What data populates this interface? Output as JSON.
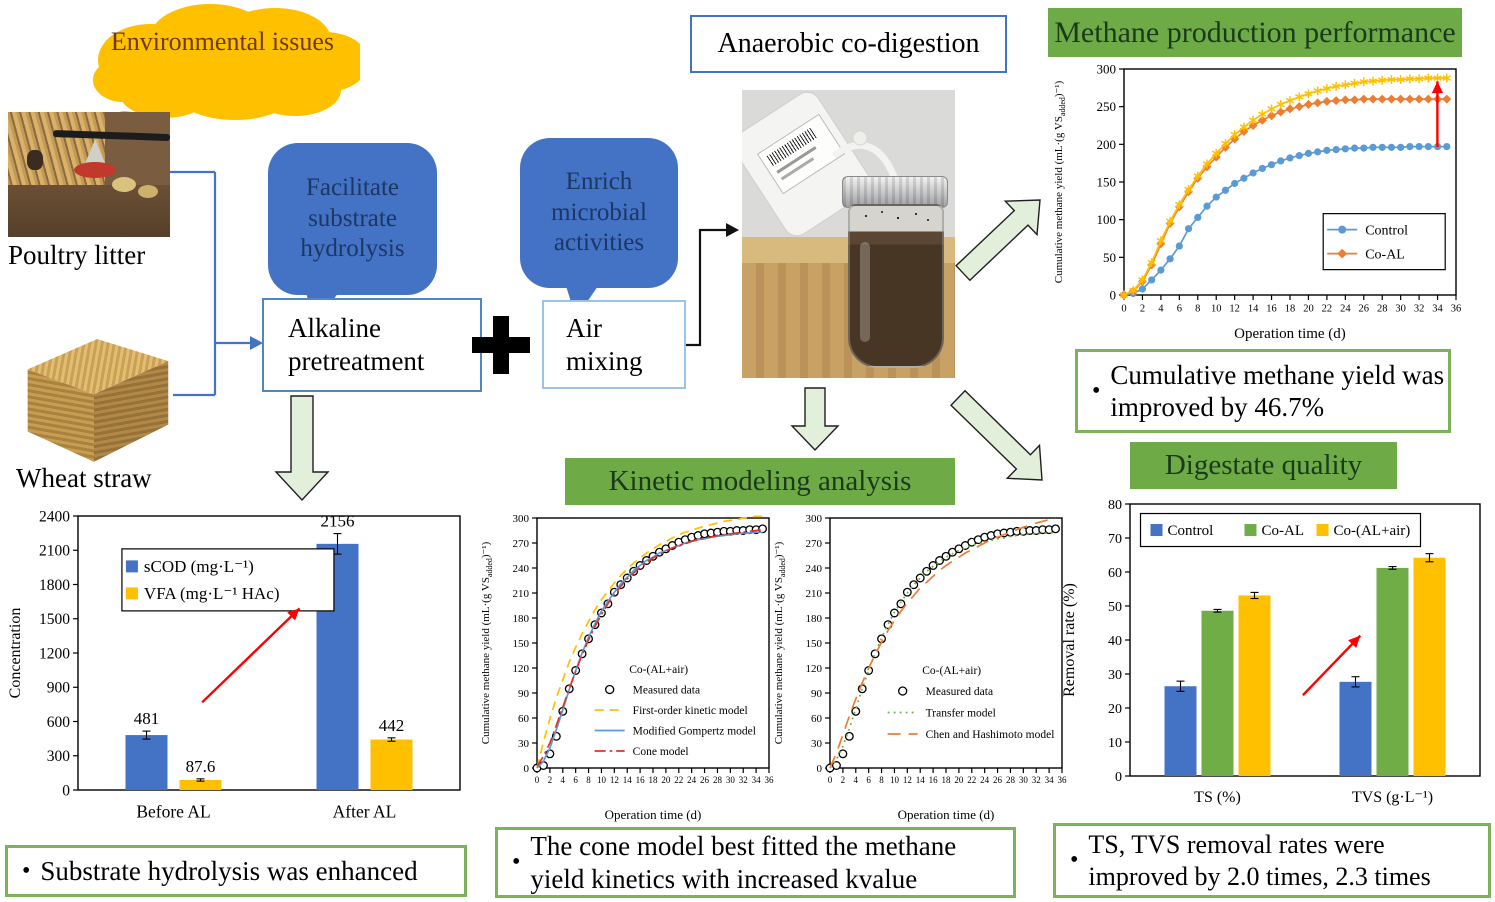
{
  "flow": {
    "cloud_label": "Environmental issues",
    "poultry_label": "Poultry litter",
    "wheat_label": "Wheat straw",
    "facilitate_bubble": "Facilitate substrate hydrolysis",
    "enrich_bubble": "Enrich microbial activities",
    "alkaline_box": "Alkaline pretreatment",
    "air_box": "Air mixing",
    "plus_sign": "+",
    "anaerobic_box": "Anaerobic co-digestion"
  },
  "headers": {
    "methane": "Methane production performance",
    "kinetic": "Kinetic modeling analysis",
    "digestate": "Digestate quality"
  },
  "bullet_char": "•",
  "bullets": {
    "methane": "Cumulative methane yield was improved by 46.7%",
    "hydrolysis": "Substrate hydrolysis was enhanced",
    "cone": "The cone model best fitted the methane yield kinetics with increased kvalue",
    "removal": "TS, TVS removal rates were improved by 2.0 times, 2.3 times"
  },
  "colors": {
    "blue": "#4472C4",
    "light_blue": "#5B9BD5",
    "orange": "#ED7D31",
    "yellow": "#FFC000",
    "green": "#70AD47",
    "header_green": "#6EAB47",
    "bullet_border": "#7DB15C",
    "cloud_yellow": "#FFC000",
    "red": "#FF0000",
    "block_arrow_fill": "#E2EFDA"
  },
  "chart_data": [
    {
      "id": "methane_performance",
      "type": "line",
      "xlabel": "Operation time (d)",
      "ylabel": "Cumulative methane yield (mL·(g VSadded)⁻¹)",
      "xlim": [
        0,
        36
      ],
      "xtick_step": 2,
      "ylim": [
        0,
        300
      ],
      "ytick_step": 50,
      "x": [
        0,
        1,
        2,
        3,
        4,
        5,
        6,
        7,
        8,
        9,
        10,
        11,
        12,
        13,
        14,
        15,
        16,
        17,
        18,
        19,
        20,
        21,
        22,
        23,
        24,
        25,
        26,
        27,
        28,
        29,
        30,
        31,
        32,
        33,
        34,
        35
      ],
      "series": [
        {
          "name": "Control",
          "color": "#5B9BD5",
          "marker": "circle",
          "line": "solid",
          "values": [
            0,
            2,
            8,
            20,
            33,
            48,
            65,
            88,
            103,
            118,
            130,
            139,
            148,
            155,
            162,
            168,
            173,
            178,
            182,
            185,
            188,
            190,
            192,
            193,
            194,
            195,
            195,
            196,
            196,
            196,
            196,
            197,
            197,
            197,
            197,
            197
          ]
        },
        {
          "name": "Co-AL",
          "color": "#ED7D31",
          "marker": "diamond",
          "line": "solid",
          "values": [
            0,
            5,
            18,
            40,
            68,
            95,
            117,
            137,
            155,
            170,
            183,
            196,
            207,
            217,
            225,
            232,
            238,
            243,
            247,
            250,
            253,
            255,
            257,
            258,
            259,
            259,
            260,
            260,
            260,
            260,
            260,
            260,
            260,
            260,
            260,
            260
          ]
        },
        {
          "name": "Co-(AL+air)",
          "color": "#FFC000",
          "marker": "star",
          "line": "solid",
          "values": [
            0,
            6,
            20,
            43,
            72,
            98,
            120,
            140,
            158,
            174,
            188,
            201,
            213,
            223,
            232,
            240,
            247,
            253,
            258,
            263,
            267,
            271,
            274,
            277,
            279,
            281,
            283,
            284,
            285,
            286,
            286,
            287,
            287,
            288,
            288,
            288
          ]
        }
      ],
      "legend": {
        "entries": [
          {
            "label": "Control",
            "series": "Control"
          },
          {
            "label": "Co-AL",
            "series": "Co-AL"
          }
        ]
      }
    },
    {
      "id": "hydrolysis_concentration",
      "type": "bar",
      "ylabel": "Concentration",
      "ylim": [
        0,
        2400
      ],
      "ytick_step": 300,
      "categories": [
        "Before AL",
        "After AL"
      ],
      "series": [
        {
          "name": "sCOD (mg·L⁻¹)",
          "color": "#4472C4",
          "values": [
            481,
            2156
          ],
          "errors": [
            35,
            90
          ],
          "labels": [
            "481",
            "2156"
          ]
        },
        {
          "name": "VFA (mg·L⁻¹ HAc)",
          "color": "#FFC000",
          "values": [
            87.6,
            442
          ],
          "errors": [
            10,
            15
          ],
          "labels": [
            "87.6",
            "442"
          ]
        }
      ],
      "legend": {
        "entries": [
          {
            "label": "sCOD (mg·L⁻¹)",
            "series": "sCOD (mg·L⁻¹)"
          },
          {
            "label": "VFA (mg·L⁻¹ HAc)",
            "series": "VFA (mg·L⁻¹ HAc)"
          }
        ]
      },
      "show_values": true
    },
    {
      "id": "kinetic_first_order",
      "type": "line",
      "xlabel": "Operation time (d)",
      "ylabel": "Cumulative methane yield (mL·(g VSadded)⁻¹)",
      "xlim": [
        0,
        36
      ],
      "xtick_step": 2,
      "ylim": [
        0,
        300
      ],
      "ytick_step": 30,
      "x": [
        0,
        1,
        2,
        3,
        4,
        5,
        6,
        7,
        8,
        9,
        10,
        11,
        12,
        13,
        14,
        15,
        16,
        17,
        18,
        19,
        20,
        21,
        22,
        23,
        24,
        25,
        26,
        27,
        28,
        29,
        30,
        31,
        32,
        33,
        34,
        35
      ],
      "series": [
        {
          "name": "Measured data",
          "color": "#000000",
          "marker": "circleopen",
          "line": "none",
          "values": [
            0,
            3,
            17,
            38,
            68,
            95,
            117,
            137,
            155,
            172,
            186,
            197,
            211,
            220,
            228,
            236,
            243,
            249,
            254,
            259,
            263,
            267,
            271,
            274,
            277,
            279,
            281,
            282,
            283,
            284,
            284,
            285,
            285,
            286,
            286,
            287
          ]
        },
        {
          "name": "First-order kinetic model",
          "color": "#FFC000",
          "marker": "none",
          "line": "dashed",
          "values": [
            0,
            31,
            59,
            84,
            106,
            127,
            145,
            161,
            176,
            190,
            202,
            212,
            222,
            231,
            239,
            246,
            252,
            258,
            263,
            268,
            272,
            276,
            280,
            283,
            285,
            288,
            290,
            292,
            294,
            296,
            297,
            298,
            300,
            301,
            302,
            302
          ]
        },
        {
          "name": "Modified Gompertz model",
          "color": "#5B9BD5",
          "marker": "none",
          "line": "solid",
          "values": [
            0,
            8,
            24,
            46,
            70,
            94,
            117,
            138,
            157,
            173,
            188,
            200,
            211,
            221,
            229,
            237,
            243,
            249,
            253,
            258,
            261,
            264,
            267,
            270,
            272,
            274,
            275,
            277,
            278,
            279,
            280,
            281,
            282,
            282,
            283,
            283
          ]
        },
        {
          "name": "Cone model",
          "color": "#E4312B",
          "marker": "none",
          "line": "dashdot",
          "values": [
            2,
            14,
            30,
            51,
            73,
            95,
            116,
            136,
            154,
            170,
            184,
            197,
            208,
            218,
            227,
            234,
            241,
            247,
            252,
            256,
            260,
            264,
            267,
            269,
            272,
            274,
            276,
            277,
            279,
            280,
            281,
            282,
            283,
            284,
            285,
            286
          ]
        }
      ],
      "legend": {
        "title": "Co-(AL+air)",
        "entries": [
          {
            "label": "Measured data",
            "series": "Measured data"
          },
          {
            "label": "First-order kinetic model",
            "series": "First-order kinetic model"
          },
          {
            "label": "Modified Gompertz model",
            "series": "Modified Gompertz model"
          },
          {
            "label": "Cone model",
            "series": "Cone model"
          }
        ]
      }
    },
    {
      "id": "kinetic_transfer",
      "type": "line",
      "xlabel": "Operation time (d)",
      "ylabel": "Cumulative methane yield (mL·(g VSadded)⁻¹)",
      "xlim": [
        0,
        36
      ],
      "xtick_step": 2,
      "ylim": [
        0,
        300
      ],
      "ytick_step": 30,
      "x": [
        0,
        1,
        2,
        3,
        4,
        5,
        6,
        7,
        8,
        9,
        10,
        11,
        12,
        13,
        14,
        15,
        16,
        17,
        18,
        19,
        20,
        21,
        22,
        23,
        24,
        25,
        26,
        27,
        28,
        29,
        30,
        31,
        32,
        33,
        34,
        35
      ],
      "series": [
        {
          "name": "Measured data",
          "color": "#000000",
          "marker": "circleopen",
          "line": "none",
          "values": [
            0,
            3,
            17,
            38,
            68,
            95,
            117,
            137,
            155,
            172,
            186,
            197,
            211,
            220,
            228,
            236,
            243,
            249,
            254,
            259,
            263,
            267,
            271,
            274,
            277,
            279,
            281,
            282,
            283,
            284,
            284,
            285,
            285,
            286,
            286,
            287
          ]
        },
        {
          "name": "Transfer model",
          "color": "#70AD47",
          "marker": "none",
          "line": "dotted",
          "values": [
            0,
            10,
            26,
            47,
            71,
            95,
            117,
            138,
            156,
            172,
            187,
            199,
            210,
            220,
            228,
            236,
            242,
            248,
            253,
            257,
            261,
            264,
            267,
            269,
            271,
            273,
            275,
            276,
            278,
            279,
            280,
            281,
            281,
            282,
            282,
            283
          ]
        },
        {
          "name": "Chen and Hashimoto model",
          "color": "#ED7D31",
          "marker": "none",
          "line": "longdash",
          "values": [
            0,
            18,
            40,
            62,
            83,
            102,
            120,
            136,
            151,
            165,
            177,
            188,
            198,
            207,
            216,
            223,
            230,
            237,
            243,
            248,
            253,
            258,
            262,
            266,
            270,
            274,
            277,
            280,
            283,
            286,
            289,
            291,
            294,
            296,
            298,
            300
          ]
        }
      ],
      "legend": {
        "title": "Co-(AL+air)",
        "entries": [
          {
            "label": "Measured data",
            "series": "Measured data"
          },
          {
            "label": "Transfer model",
            "series": "Transfer model"
          },
          {
            "label": "Chen and Hashimoto model",
            "series": "Chen and Hashimoto model"
          }
        ]
      }
    },
    {
      "id": "digestate_quality",
      "type": "bar",
      "ylabel": "Removal rate (%)",
      "ylim": [
        0,
        80
      ],
      "ytick_step": 10,
      "categories": [
        "TS (%)",
        "TVS (g·L⁻¹)"
      ],
      "series": [
        {
          "name": "Control",
          "color": "#4472C4",
          "values": [
            26.4,
            27.7
          ],
          "errors": [
            1.5,
            1.5
          ]
        },
        {
          "name": "Co-AL",
          "color": "#70AD47",
          "values": [
            48.6,
            61.2
          ],
          "errors": [
            0.4,
            0.4
          ]
        },
        {
          "name": "Co-(AL+air)",
          "color": "#FFC000",
          "values": [
            53.1,
            64.2
          ],
          "errors": [
            0.9,
            1.2
          ]
        }
      ],
      "legend": {
        "entries": [
          {
            "label": "Control",
            "series": "Control"
          },
          {
            "label": "Co-AL",
            "series": "Co-AL"
          },
          {
            "label": "Co-(AL+air)",
            "series": "Co-(AL+air)"
          }
        ]
      },
      "show_values": false
    }
  ]
}
